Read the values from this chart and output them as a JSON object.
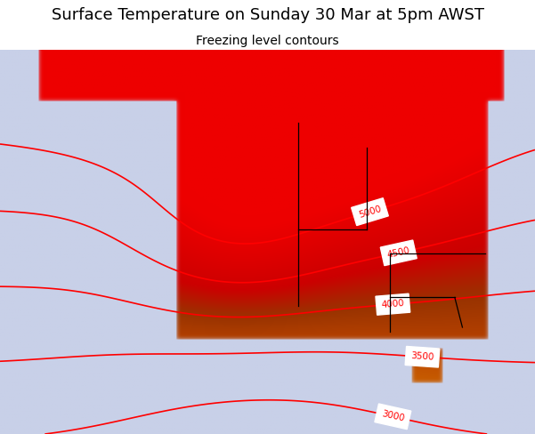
{
  "title": "Surface Temperature on Sunday 30 Mar at 5pm AWST",
  "subtitle": "Freezing level contours",
  "title_fontsize": 13,
  "subtitle_fontsize": 10,
  "bg_color": "#ffffff",
  "ocean_color": "#c8d0e8",
  "fig_width": 6.01,
  "fig_height": 4.88,
  "dpi": 100,
  "lon_min": 90.0,
  "lon_max": 160.0,
  "lat_min": -50.0,
  "lat_max": -5.0,
  "contour_color": "#ff0000",
  "contour_linewidth": 1.2,
  "contour_label_fontsize": 7.5,
  "contour_levels": [
    3000,
    3500,
    4000,
    4500,
    5000
  ],
  "state_border_color": "#000000",
  "state_border_linewidth": 0.9,
  "grid_color": "#b0b8d8",
  "grid_alpha": 0.7,
  "grid_linewidth": 0.5,
  "coast_linewidth": 0.4,
  "coast_color": "#888888"
}
